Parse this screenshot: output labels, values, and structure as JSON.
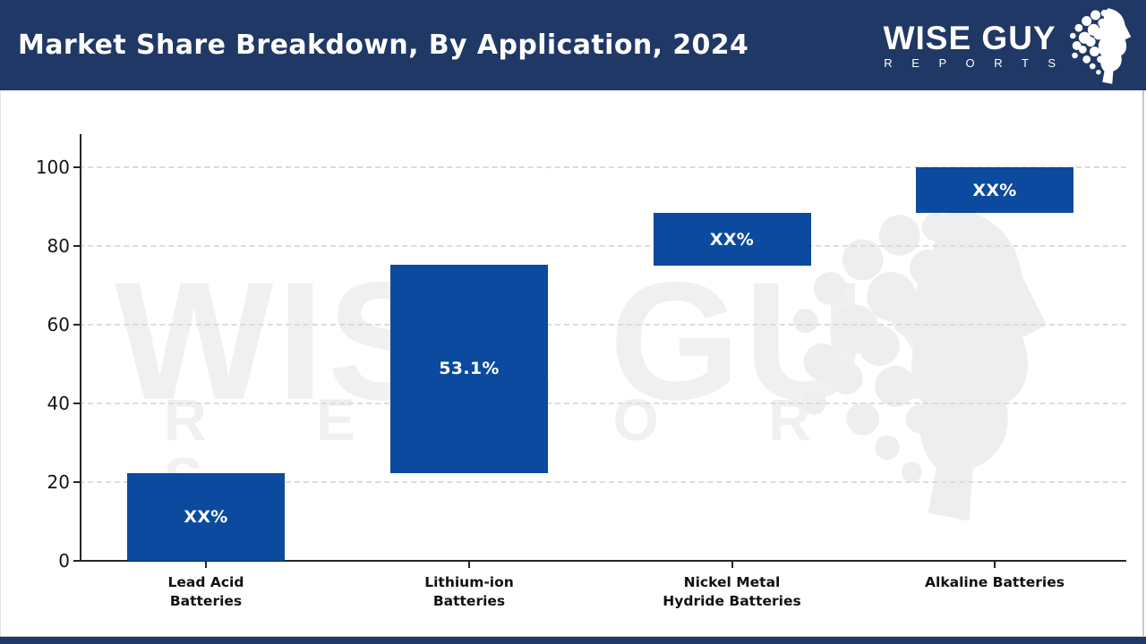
{
  "header": {
    "title": "Market Share Breakdown, By Application, 2024",
    "logo_line1": "WISE GUY",
    "logo_line2": "R E P O R T S"
  },
  "watermark": {
    "line1": "WISE GUY",
    "line2": "R E P O R T S"
  },
  "colors": {
    "header_bg": "#203865",
    "footer_bg": "#203865",
    "bar": "#0b4a9e",
    "gridline": "#dcdcdc",
    "axis": "#262626",
    "tick_label": "#141414",
    "bar_label": "#ffffff",
    "watermark": "#f0f0f0"
  },
  "chart_data": {
    "type": "bar",
    "variant": "floating waterfall-style columns",
    "title": "Market Share Breakdown, By Application, 2024",
    "xlabel": "",
    "ylabel": "",
    "categories": [
      "Lead Acid Batteries",
      "Lithium-ion Batteries",
      "Nickel Metal Hydride Batteries",
      "Alkaline Batteries"
    ],
    "category_label_lines": [
      [
        "Lead Acid",
        "Batteries"
      ],
      [
        "Lithium-ion",
        "Batteries"
      ],
      [
        "Nickel Metal",
        "Hydride Batteries"
      ],
      [
        "Alkaline Batteries"
      ]
    ],
    "series": [
      {
        "name": "Market share (%)",
        "segments": [
          {
            "category": "Lead Acid Batteries",
            "start": 0,
            "end": 22.2,
            "label": "XX%"
          },
          {
            "category": "Lithium-ion Batteries",
            "start": 22.2,
            "end": 75.3,
            "label": "53.1%"
          },
          {
            "category": "Nickel Metal Hydride Batteries",
            "start": 74.9,
            "end": 88.5,
            "label": "XX%"
          },
          {
            "category": "Alkaline Batteries",
            "start": 88.4,
            "end": 99.9,
            "label": "XX%"
          }
        ]
      }
    ],
    "yticks": [
      0,
      20,
      40,
      60,
      80,
      100
    ],
    "ylim": [
      0,
      108
    ],
    "grid": "horizontal dashed",
    "legend": "none",
    "bar_color": "#0b4a9e"
  }
}
